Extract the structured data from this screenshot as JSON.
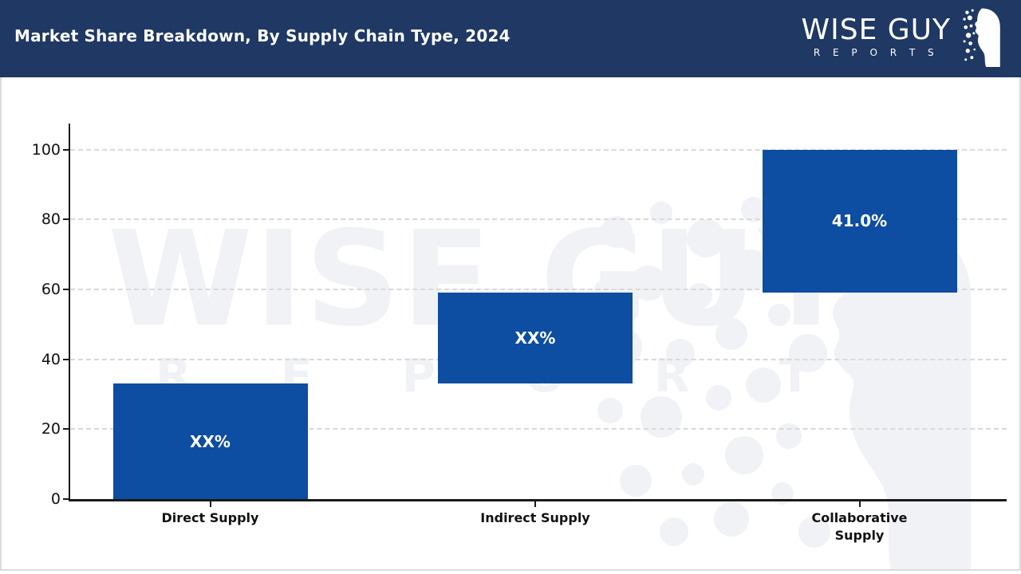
{
  "header": {
    "title": "Market Share Breakdown, By Supply Chain Type, 2024",
    "brand": {
      "name": "WISE GUY",
      "tagline": "R E P O R T S"
    }
  },
  "watermark": {
    "name": "WISE GUY",
    "tagline": "R E P O R T S"
  },
  "chart_data": {
    "type": "bar",
    "subtype": "floating-segment waterfall (stacked market-share breakdown)",
    "title": "Market Share Breakdown, By Supply Chain Type, 2024",
    "categories": [
      "Direct Supply",
      "Indirect Supply",
      "Collaborative Supply"
    ],
    "segments": [
      {
        "category": "Direct Supply",
        "from": 0,
        "to": 33,
        "label": "XX%"
      },
      {
        "category": "Indirect Supply",
        "from": 33,
        "to": 59,
        "label": "XX%"
      },
      {
        "category": "Collaborative Supply",
        "from": 59,
        "to": 100,
        "label": "41.0%"
      }
    ],
    "yticks": [
      0,
      20,
      40,
      60,
      80,
      100
    ],
    "ylim": [
      0,
      107
    ],
    "xlabel": "",
    "ylabel": "",
    "grid": "horizontal-dashed",
    "legend": "none",
    "colors": {
      "bar": "#0d4da2",
      "header_bg": "#1f3864",
      "grid": "#d9d9d9",
      "axis": "#1a1a1a",
      "bar_label": "#ffffff",
      "watermark": "#f1f2f5"
    }
  }
}
